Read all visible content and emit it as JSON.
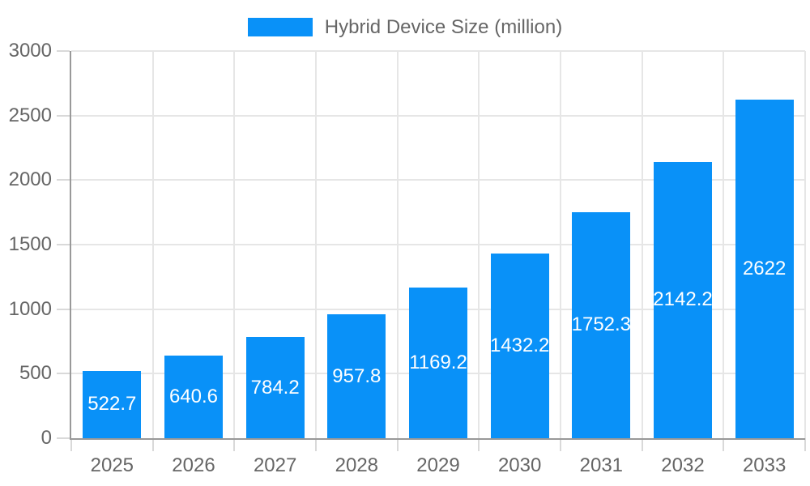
{
  "chart_data": {
    "type": "bar",
    "title": "",
    "xlabel": "",
    "ylabel": "",
    "legend_position": "top",
    "grid": true,
    "categories": [
      "2025",
      "2026",
      "2027",
      "2028",
      "2029",
      "2030",
      "2031",
      "2032",
      "2033"
    ],
    "series": [
      {
        "name": "Hybrid Device Size (million)",
        "values": [
          522.7,
          640.6,
          784.2,
          957.8,
          1169.2,
          1432.2,
          1752.3,
          2142.2,
          2622
        ]
      }
    ],
    "value_labels": [
      "522.7",
      "640.6",
      "784.2",
      "957.8",
      "1169.2",
      "1432.2",
      "1752.3",
      "2142.2",
      "2622"
    ],
    "ylim": [
      0,
      3000
    ],
    "yticks": [
      0,
      500,
      1000,
      1500,
      2000,
      2500,
      3000
    ],
    "colors": {
      "bar": "#0991f8",
      "grid": "#e6e6e6",
      "tick": "#d9d9d9",
      "axis": "#999999",
      "tick_label": "#666666",
      "legend_text": "#666666",
      "value_label": "#ffffff"
    }
  }
}
